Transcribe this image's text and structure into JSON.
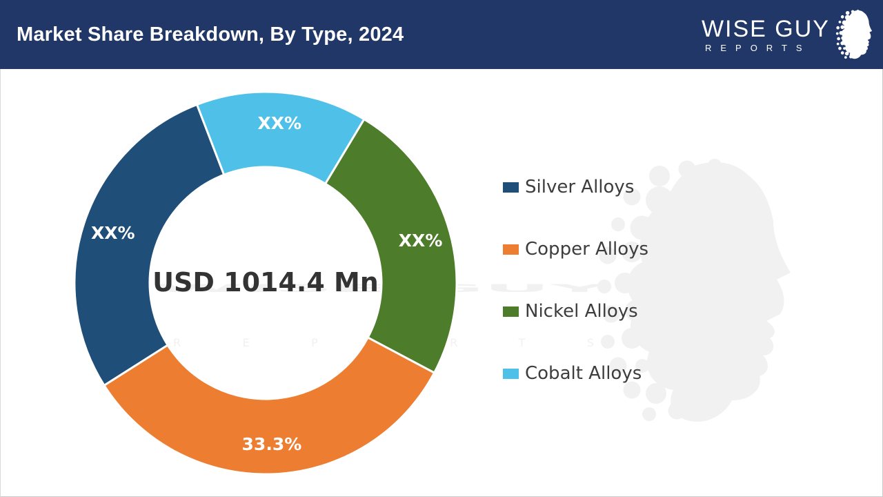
{
  "header": {
    "title": "Market Share Breakdown, By Type, 2024",
    "logo": {
      "line1": "WISE GUY",
      "line2": "REPORTS"
    }
  },
  "watermark": {
    "line1": "WISE GUY",
    "line2": "REPORTS"
  },
  "chart_data": {
    "type": "donut",
    "title": "Market Share Breakdown, By Type, 2024",
    "center_label": "USD 1014.4 Mn",
    "legend_position": "right",
    "start_angle_deg": 28,
    "order": [
      1,
      0,
      3,
      2
    ],
    "segments": [
      {
        "label": "Silver Alloys",
        "display_value": "XX%",
        "approx_percent": 28.2,
        "color": "#1F4E79"
      },
      {
        "label": "Copper Alloys",
        "display_value": "33.3%",
        "approx_percent": 33.3,
        "color": "#ED7D31"
      },
      {
        "label": "Nickel Alloys",
        "display_value": "XX%",
        "approx_percent": 24.2,
        "color": "#4D7C2B"
      },
      {
        "label": "Cobalt Alloys",
        "display_value": "XX%",
        "approx_percent": 14.5,
        "color": "#4FC1E9"
      }
    ]
  },
  "theme": {
    "header_navy": "#203767",
    "center_text": "#333333",
    "legend_text": "#3D3D3D",
    "watermark_gray": "#F1F1F1",
    "separator": "#FFFFFF"
  }
}
